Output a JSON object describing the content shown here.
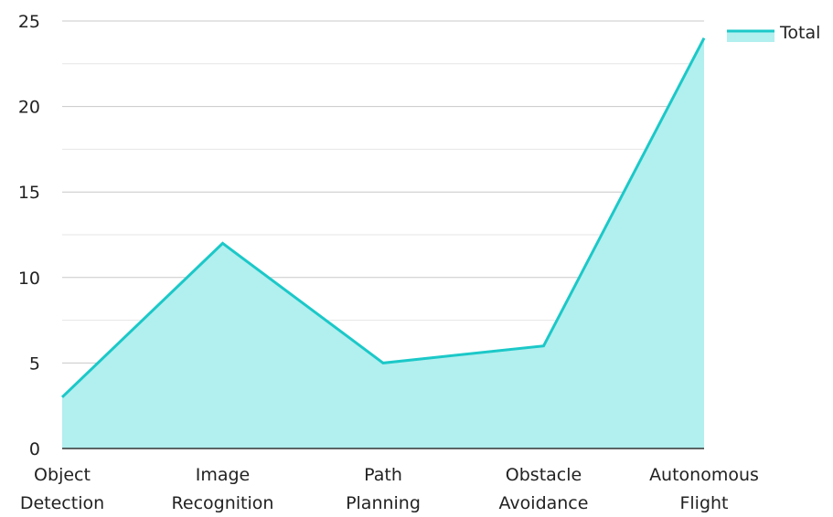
{
  "chart_data": {
    "type": "area",
    "categories": [
      [
        "Object",
        "Detection"
      ],
      [
        "Image",
        "Recognition"
      ],
      [
        "Path",
        "Planning"
      ],
      [
        "Obstacle",
        "Avoidance"
      ],
      [
        "Autonomous",
        "Flight"
      ]
    ],
    "series": [
      {
        "name": "Total",
        "values": [
          3,
          12,
          5,
          6,
          24
        ]
      }
    ],
    "ylim": [
      0,
      25
    ],
    "yticks": [
      0,
      5,
      10,
      15,
      20,
      25
    ],
    "minor_grid": true,
    "legend_position": "top-right",
    "colors": {
      "line": "#1cc8c8",
      "fill": "#b2efef",
      "grid_major": "#c8c8c8",
      "grid_minor": "#e6e6e6",
      "axis": "#333333"
    }
  }
}
